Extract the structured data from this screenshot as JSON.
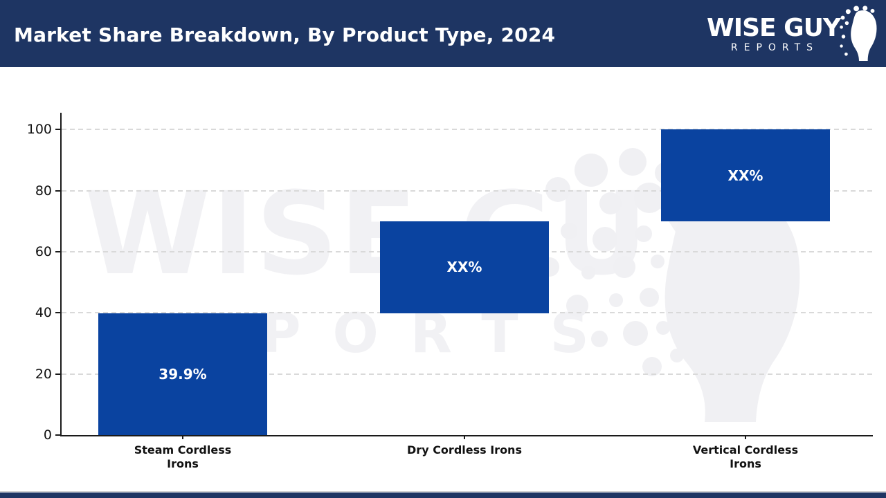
{
  "header": {
    "title": "Market Share Breakdown, By Product Type, 2024",
    "bg_color": "#1e3563",
    "text_color": "#ffffff",
    "logo": {
      "line1": "WISE GUY",
      "line2": "REPORTS",
      "face_icon": "face-profile-dots-icon"
    }
  },
  "watermark": {
    "line1": "WISE GUY",
    "line2": "REPORTS",
    "face_icon": "face-profile-dots-icon",
    "color": "#f1f1f4"
  },
  "footer": {
    "bar_color": "#1e3563"
  },
  "chart_data": {
    "type": "bar",
    "subtype": "floating-waterfall-percentage",
    "title": "Market Share Breakdown, By Product Type, 2024",
    "categories": [
      "Steam Cordless\nIrons",
      "Dry Cordless Irons",
      "Vertical Cordless\nIrons"
    ],
    "series": [
      {
        "name": "Steam Cordless Irons",
        "start": 0,
        "end": 39.9,
        "label": "39.9%"
      },
      {
        "name": "Dry Cordless Irons",
        "start": 39.9,
        "end": 70,
        "label": "XX%"
      },
      {
        "name": "Vertical Cordless Irons",
        "start": 70,
        "end": 100,
        "label": "XX%"
      }
    ],
    "xlabel": "",
    "ylabel": "",
    "yticks": [
      0,
      20,
      40,
      60,
      80,
      100
    ],
    "ylim": [
      0,
      105.5
    ],
    "grid": "horizontal-dashed",
    "legend": "none",
    "bar_color": "#0a43a0",
    "bar_label_color": "#ffffff",
    "axis_color": "#1a1a1a",
    "grid_color": "#d9d9d9",
    "tick_label_color": "#111111"
  }
}
